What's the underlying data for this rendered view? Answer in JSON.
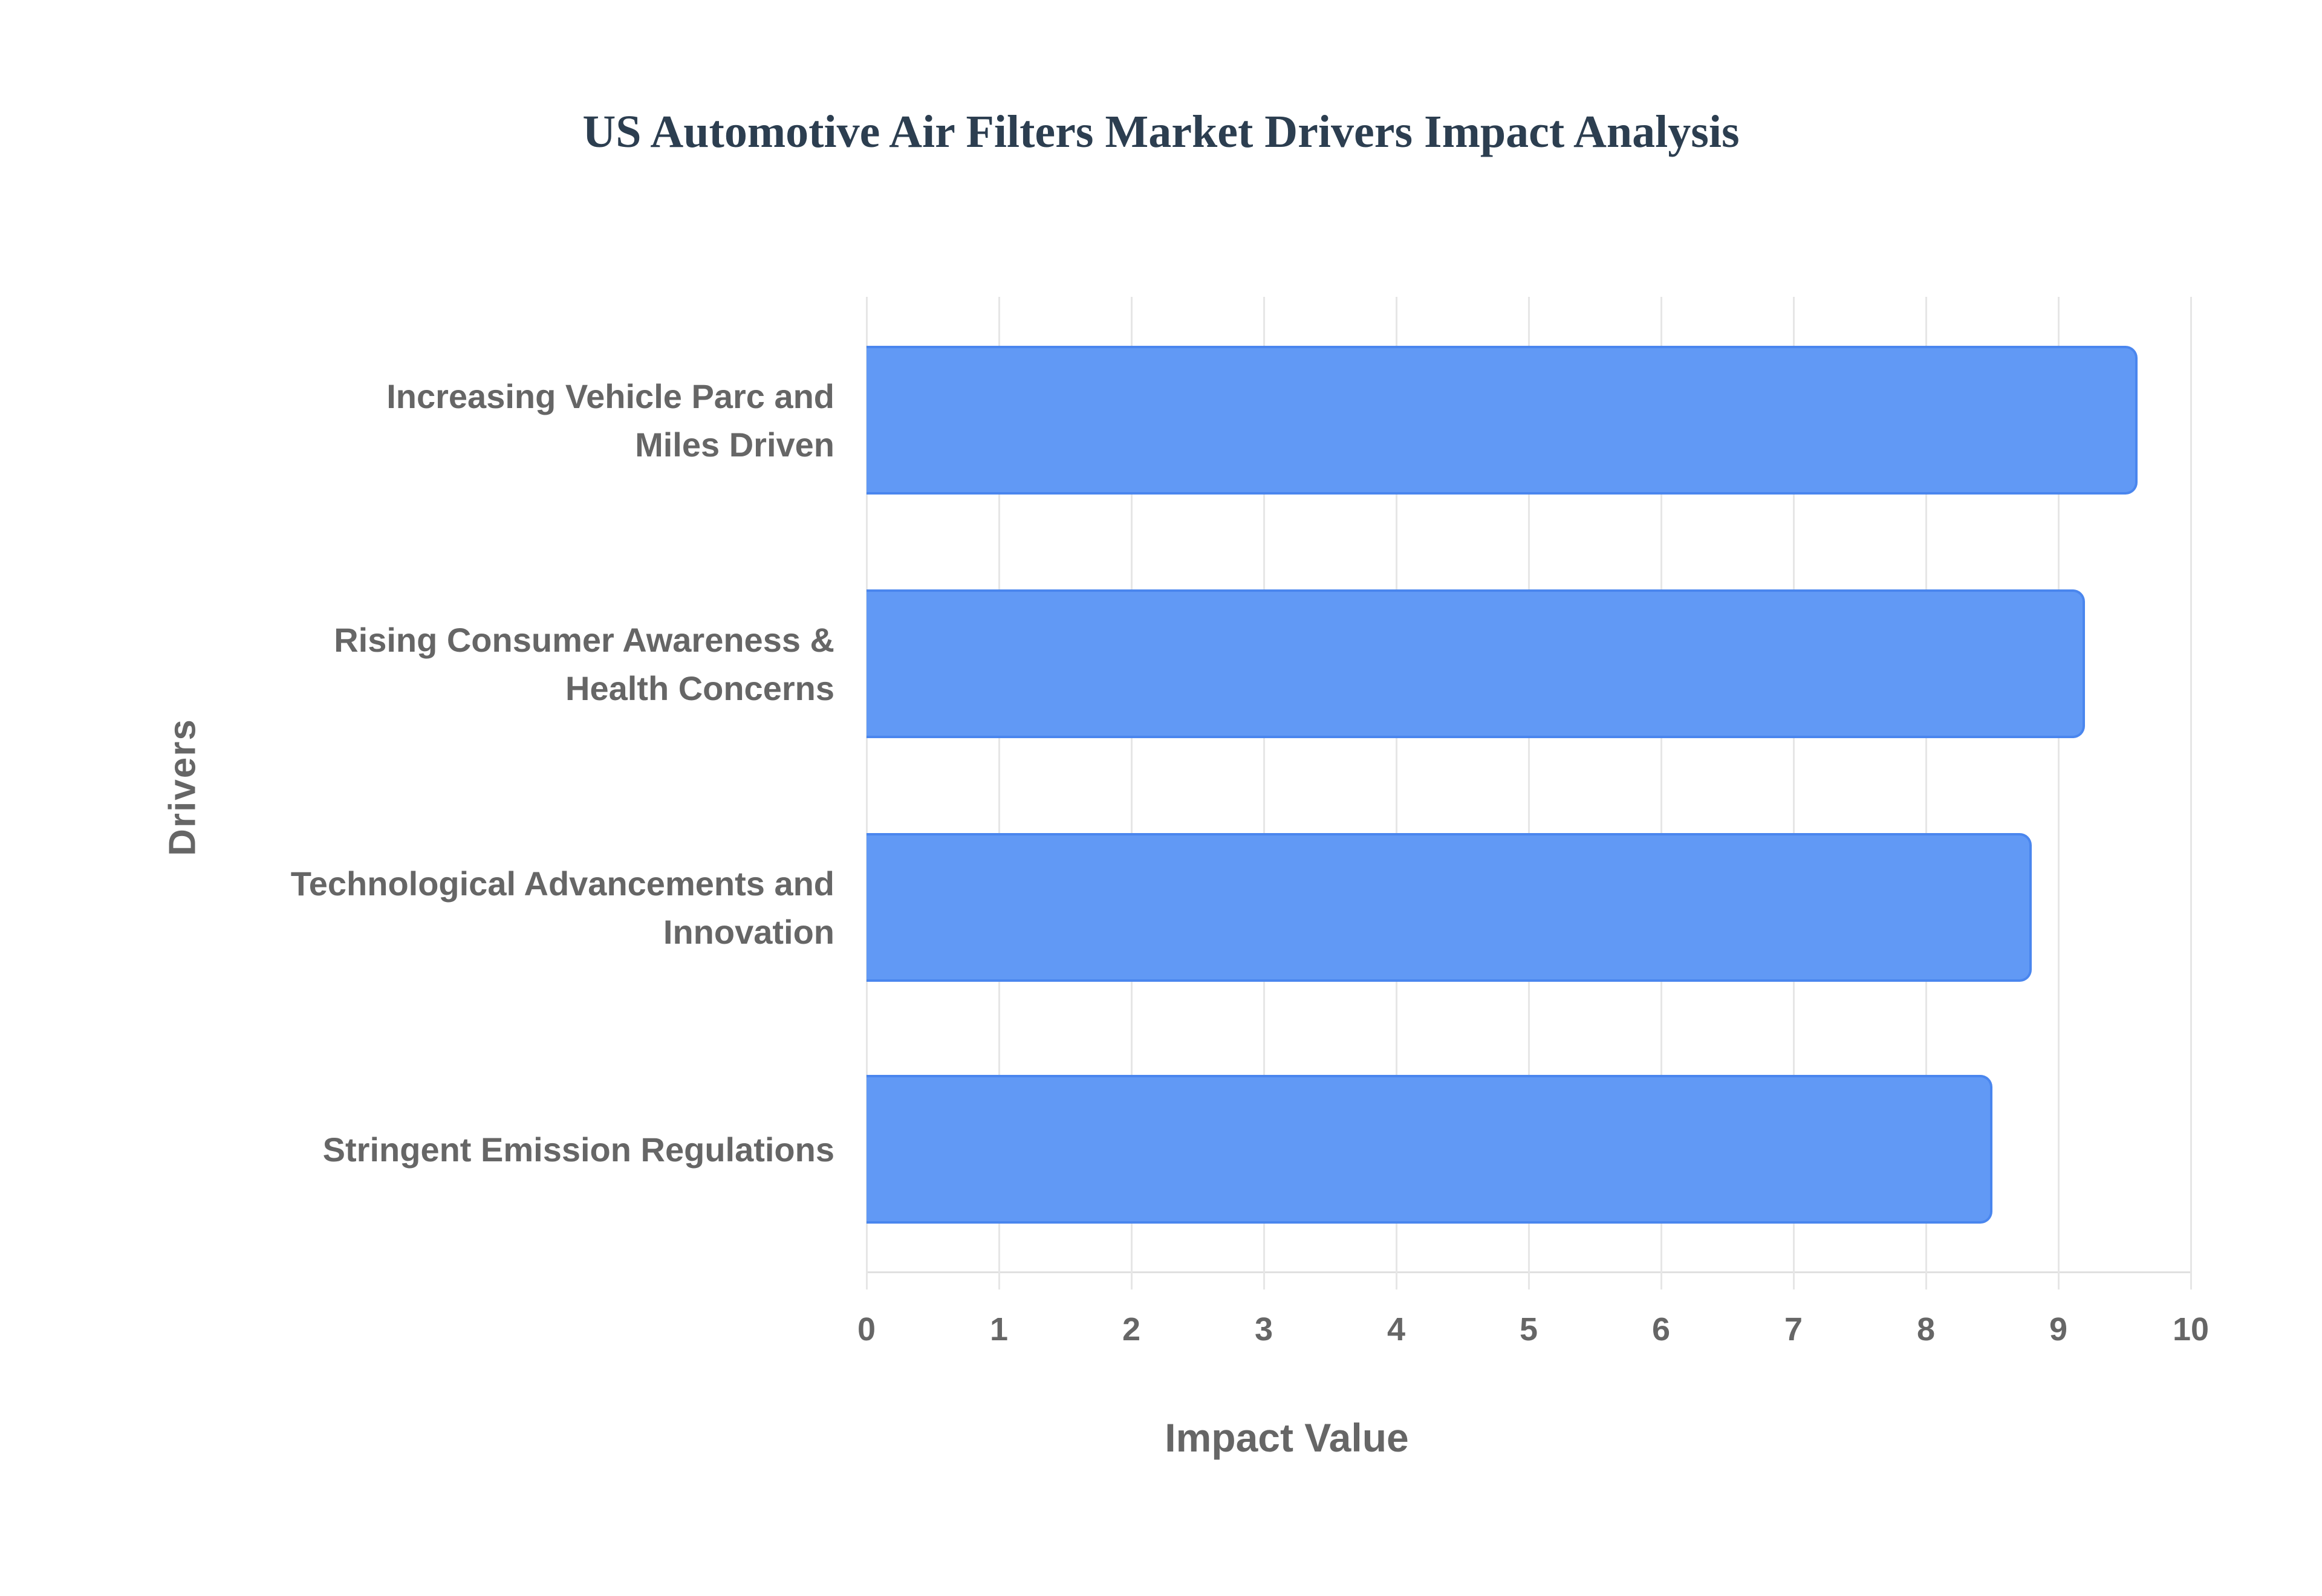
{
  "chart_data": {
    "type": "bar",
    "orientation": "horizontal",
    "title": "US Automotive Air Filters Market Drivers Impact Analysis",
    "xlabel": "Impact Value",
    "ylabel": "Drivers",
    "xlim": [
      0,
      10
    ],
    "x_ticks": [
      "0",
      "1",
      "2",
      "3",
      "4",
      "5",
      "6",
      "7",
      "8",
      "9",
      "10"
    ],
    "grid": true,
    "legend": "none",
    "categories": [
      "Increasing Vehicle Parc and Miles Driven",
      "Rising Consumer Awareness & Health Concerns",
      "Technological Advancements and Innovation",
      "Stringent Emission Regulations"
    ],
    "values": [
      9.6,
      9.2,
      8.8,
      8.5
    ],
    "bar_color": "#6199f5",
    "bar_border_color": "#4a86ee"
  },
  "labels": {
    "title": "US Automotive Air Filters Market Drivers Impact Analysis",
    "x_axis_title": "Impact Value",
    "y_axis_title": "Drivers",
    "y_categories": [
      {
        "line1": "Increasing Vehicle Parc and",
        "line2": "Miles Driven"
      },
      {
        "line1": "Rising Consumer Awareness &",
        "line2": "Health Concerns"
      },
      {
        "line1": "Technological Advancements and",
        "line2": "Innovation"
      },
      {
        "line1": "Stringent Emission Regulations",
        "line2": ""
      }
    ],
    "x_ticks": [
      "0",
      "1",
      "2",
      "3",
      "4",
      "5",
      "6",
      "7",
      "8",
      "9",
      "10"
    ]
  }
}
